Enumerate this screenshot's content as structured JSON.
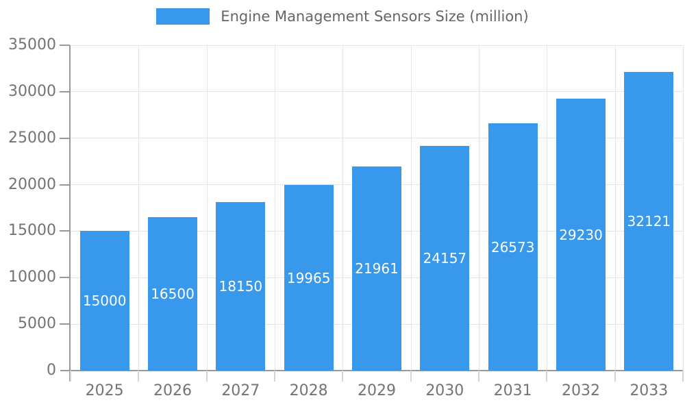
{
  "legend": {
    "label": "Engine Management Sensors Size (million)"
  },
  "chart_data": {
    "type": "bar",
    "title": "Engine Management Sensors Size (million)",
    "categories": [
      "2025",
      "2026",
      "2027",
      "2028",
      "2029",
      "2030",
      "2031",
      "2032",
      "2033"
    ],
    "values": [
      15000,
      16500,
      18150,
      19965,
      21961,
      24157,
      26573,
      29230,
      32121
    ],
    "xlabel": "",
    "ylabel": "",
    "ylim": [
      0,
      35000
    ],
    "ytick_step": 5000,
    "ytick_labels": [
      "0",
      "5000",
      "10000",
      "15000",
      "20000",
      "25000",
      "30000",
      "35000"
    ],
    "grid": true,
    "legend_position": "top",
    "value_labels": "inside-center",
    "colors": {
      "bar": "#3898ec",
      "value_label": "#ffffff",
      "axis_line": "#999999",
      "grid_line": "#e5e5e5",
      "tick_label": "#737373",
      "legend_text": "#666666",
      "background": "#ffffff"
    }
  }
}
